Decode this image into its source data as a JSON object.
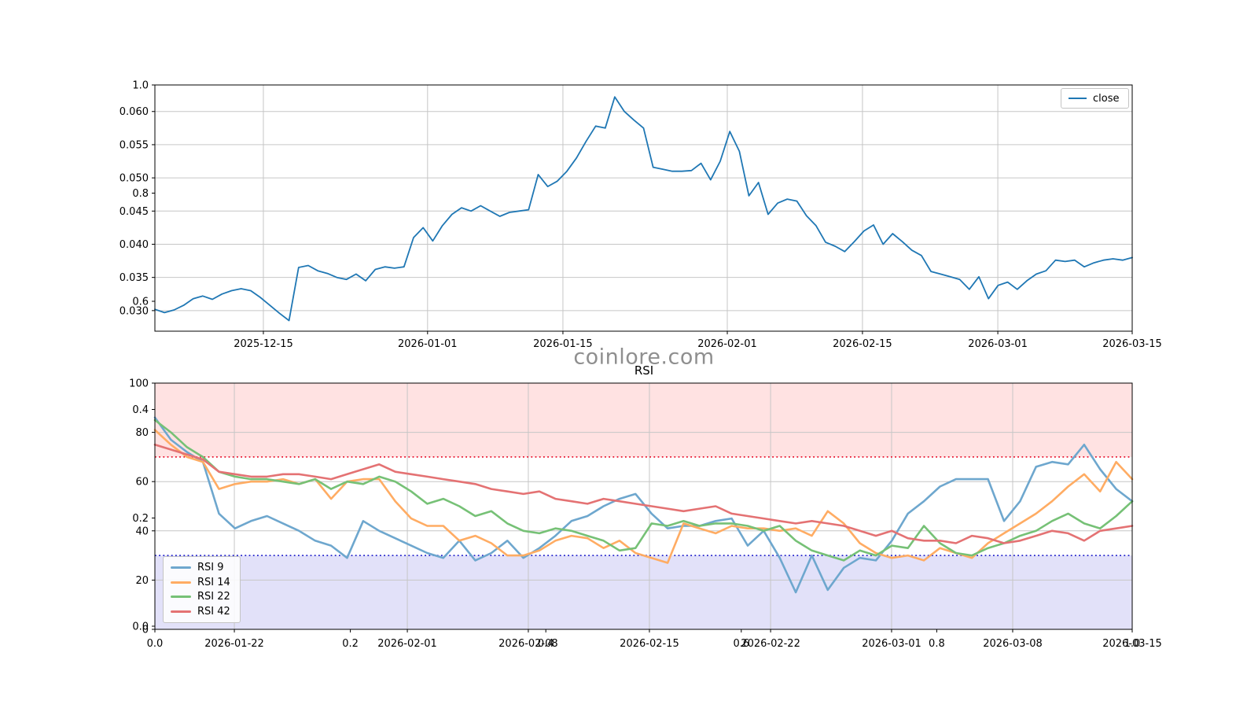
{
  "watermark": "coinlore.com",
  "figure_axis": {
    "y_tick_labels": [
      "1.0",
      "0.8",
      "0.6",
      "0.4",
      "0.2",
      "0.0"
    ],
    "x_tick_labels": [
      "0.0",
      "0.2",
      "0.4",
      "0.6",
      "0.8",
      "1.0"
    ]
  },
  "chart_data": [
    {
      "type": "line",
      "name": "price-chart",
      "title": "",
      "grid": true,
      "legend_position": "upper right",
      "ylim": [
        0.0269,
        0.064
      ],
      "y_ticks": [
        0.03,
        0.035,
        0.04,
        0.045,
        0.05,
        0.055,
        0.06
      ],
      "y_tick_labels": [
        "0.030",
        "0.035",
        "0.040",
        "0.045",
        "0.050",
        "0.055",
        "0.060"
      ],
      "x_tick_labels": [
        "2025-12-15",
        "2026-01-01",
        "2026-01-15",
        "2026-02-01",
        "2026-02-15",
        "2026-03-01",
        "2026-03-15"
      ],
      "x_tick_pos": [
        0.111,
        0.279,
        0.4175,
        0.5857,
        0.724,
        0.8625,
        1.0
      ],
      "series": [
        {
          "name": "close",
          "color": "#1f77b4",
          "values": [
            0.0302,
            0.0297,
            0.0301,
            0.0308,
            0.0318,
            0.0322,
            0.0317,
            0.0325,
            0.033,
            0.0333,
            0.033,
            0.032,
            0.0308,
            0.0296,
            0.0285,
            0.0365,
            0.0368,
            0.036,
            0.0356,
            0.035,
            0.0347,
            0.0355,
            0.0345,
            0.0362,
            0.0366,
            0.0364,
            0.0366,
            0.041,
            0.0425,
            0.0405,
            0.0428,
            0.0445,
            0.0455,
            0.045,
            0.0458,
            0.045,
            0.0442,
            0.0448,
            0.045,
            0.0452,
            0.0505,
            0.0487,
            0.0495,
            0.051,
            0.053,
            0.0555,
            0.0578,
            0.0575,
            0.0622,
            0.06,
            0.0587,
            0.0575,
            0.0516,
            0.0513,
            0.051,
            0.051,
            0.0511,
            0.0522,
            0.0497,
            0.0525,
            0.057,
            0.054,
            0.0473,
            0.0493,
            0.0445,
            0.0462,
            0.0468,
            0.0465,
            0.0443,
            0.0428,
            0.0403,
            0.0397,
            0.0389,
            0.0404,
            0.042,
            0.0429,
            0.04,
            0.0416,
            0.0404,
            0.0391,
            0.0383,
            0.0359,
            0.0355,
            0.0351,
            0.0347,
            0.0332,
            0.0351,
            0.0318,
            0.0338,
            0.0343,
            0.0332,
            0.0345,
            0.0355,
            0.036,
            0.0376,
            0.0374,
            0.0376,
            0.0366,
            0.0372,
            0.0376,
            0.0378,
            0.0376,
            0.038
          ]
        }
      ]
    },
    {
      "type": "line",
      "name": "rsi-chart",
      "title": "RSI",
      "grid": true,
      "legend_position": "lower left",
      "ylim": [
        0,
        100
      ],
      "y_ticks": [
        0,
        20,
        40,
        60,
        80,
        100
      ],
      "y_tick_labels": [
        "0",
        "20",
        "40",
        "60",
        "80",
        "100"
      ],
      "x_tick_labels": [
        "2026-01-22",
        "2026-02-01",
        "2026-02-08",
        "2026-02-15",
        "2026-02-22",
        "2026-03-01",
        "2026-03-08",
        "2026-03-15"
      ],
      "x_tick_pos": [
        0.0813,
        0.2583,
        0.3821,
        0.506,
        0.63,
        0.7538,
        0.8777,
        1.0
      ],
      "bands": [
        {
          "name": "overbought-zone",
          "from": 70,
          "to": 100,
          "color": "#ffe2e2"
        },
        {
          "name": "oversold-zone",
          "from": 0,
          "to": 30,
          "color": "#e2e1f9"
        }
      ],
      "hlines": [
        {
          "name": "overbought-threshold",
          "y": 70,
          "color": "#e8132d",
          "style": "dotted"
        },
        {
          "name": "oversold-threshold",
          "y": 30,
          "color": "#2626cc",
          "style": "dotted"
        }
      ],
      "series": [
        {
          "name": "RSI 9",
          "color": "#6ea7ce",
          "values": [
            86,
            77,
            72,
            68,
            47,
            41,
            44,
            46,
            43,
            40,
            36,
            34,
            29,
            44,
            40,
            37,
            34,
            31,
            29,
            36,
            28,
            31,
            36,
            29,
            33,
            38,
            44,
            46,
            50,
            53,
            55,
            47,
            41,
            42,
            42,
            44,
            45,
            34,
            40,
            29,
            15,
            30,
            16,
            25,
            29,
            28,
            36,
            47,
            52,
            58,
            61,
            61,
            61,
            44,
            52,
            66,
            68,
            67,
            75,
            65,
            57,
            52
          ]
        },
        {
          "name": "RSI 14",
          "color": "#ffac63",
          "values": [
            81,
            75,
            70,
            68,
            57,
            59,
            60,
            60,
            61,
            59,
            61,
            53,
            60,
            61,
            61,
            52,
            45,
            42,
            42,
            36,
            38,
            35,
            30,
            30,
            32,
            36,
            38,
            37,
            33,
            36,
            31,
            29,
            27,
            43,
            41,
            39,
            42,
            41,
            41,
            40,
            41,
            38,
            48,
            43,
            35,
            31,
            29,
            30,
            28,
            33,
            31,
            29,
            35,
            39,
            43,
            47,
            52,
            58,
            63,
            56,
            68,
            61
          ]
        },
        {
          "name": "RSI 22",
          "color": "#76c176",
          "values": [
            85,
            80,
            74,
            70,
            64,
            62,
            61,
            61,
            60,
            59,
            61,
            57,
            60,
            59,
            62,
            60,
            56,
            51,
            53,
            50,
            46,
            48,
            43,
            40,
            39,
            41,
            40,
            38,
            36,
            32,
            33,
            43,
            42,
            44,
            42,
            43,
            43,
            42,
            40,
            42,
            36,
            32,
            30,
            28,
            32,
            30,
            34,
            33,
            42,
            35,
            31,
            30,
            33,
            35,
            38,
            40,
            44,
            47,
            43,
            41,
            46,
            52
          ]
        },
        {
          "name": "RSI 42",
          "color": "#e47273",
          "values": [
            75,
            73,
            71,
            69,
            64,
            63,
            62,
            62,
            63,
            63,
            62,
            61,
            63,
            65,
            67,
            64,
            63,
            62,
            61,
            60,
            59,
            57,
            56,
            55,
            56,
            53,
            52,
            51,
            53,
            52,
            51,
            50,
            49,
            48,
            49,
            50,
            47,
            46,
            45,
            44,
            43,
            44,
            43,
            42,
            40,
            38,
            40,
            37,
            36,
            36,
            35,
            38,
            37,
            35,
            36,
            38,
            40,
            39,
            36,
            40,
            41,
            42
          ]
        }
      ]
    }
  ]
}
